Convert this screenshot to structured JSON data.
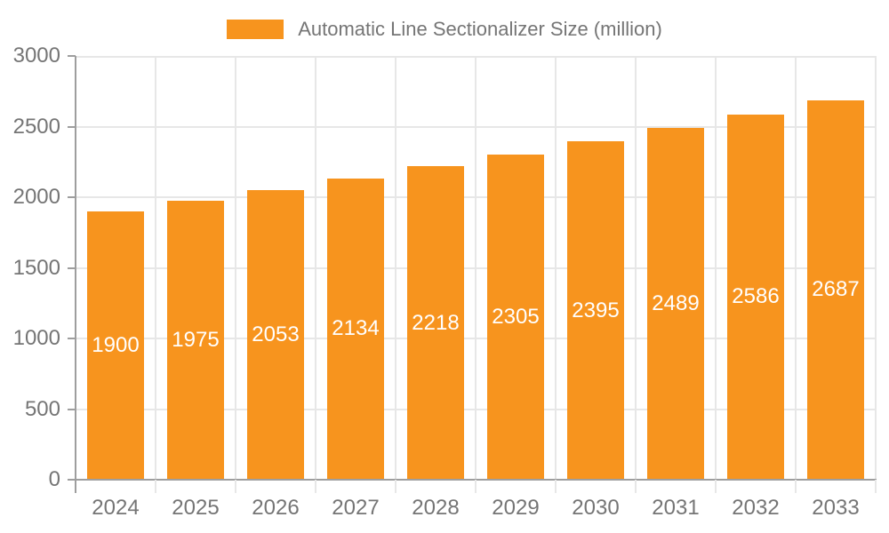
{
  "chart_data": {
    "type": "bar",
    "title": "Automatic Line Sectionalizer Size (million)",
    "categories": [
      "2024",
      "2025",
      "2026",
      "2027",
      "2028",
      "2029",
      "2030",
      "2031",
      "2032",
      "2033"
    ],
    "values": [
      1900,
      1975,
      2053,
      2134,
      2218,
      2305,
      2395,
      2489,
      2586,
      2687
    ],
    "xlabel": "",
    "ylabel": "",
    "ylim": [
      0,
      3000
    ],
    "yticks": [
      0,
      500,
      1000,
      1500,
      2000,
      2500,
      3000
    ],
    "grid": true,
    "legend_position": "top",
    "bar_labels_inside": true,
    "colors": {
      "bar": "#F7941E",
      "bar_label": "#FFFFFF",
      "axis_text": "#757575",
      "grid_line": "#E7E7E7",
      "axis_line": "#9E9E9E"
    }
  }
}
